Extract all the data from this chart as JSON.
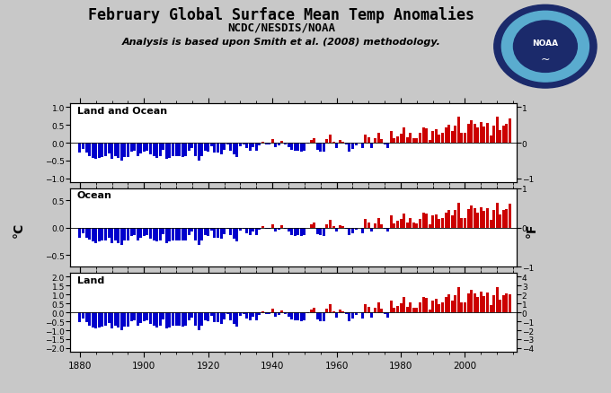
{
  "title1": "February Global Surface Mean Temp Anomalies",
  "title2": "NCDC/NESDIS/NOAA",
  "subtitle": "Analysis is based upon Smith et al. (2008) methodology.",
  "years": [
    1880,
    1881,
    1882,
    1883,
    1884,
    1885,
    1886,
    1887,
    1888,
    1889,
    1890,
    1891,
    1892,
    1893,
    1894,
    1895,
    1896,
    1897,
    1898,
    1899,
    1900,
    1901,
    1902,
    1903,
    1904,
    1905,
    1906,
    1907,
    1908,
    1909,
    1910,
    1911,
    1912,
    1913,
    1914,
    1915,
    1916,
    1917,
    1918,
    1919,
    1920,
    1921,
    1922,
    1923,
    1924,
    1925,
    1926,
    1927,
    1928,
    1929,
    1930,
    1931,
    1932,
    1933,
    1934,
    1935,
    1936,
    1937,
    1938,
    1939,
    1940,
    1941,
    1942,
    1943,
    1944,
    1945,
    1946,
    1947,
    1948,
    1949,
    1950,
    1951,
    1952,
    1953,
    1954,
    1955,
    1956,
    1957,
    1958,
    1959,
    1960,
    1961,
    1962,
    1963,
    1964,
    1965,
    1966,
    1967,
    1968,
    1969,
    1970,
    1971,
    1972,
    1973,
    1974,
    1975,
    1976,
    1977,
    1978,
    1979,
    1980,
    1981,
    1982,
    1983,
    1984,
    1985,
    1986,
    1987,
    1988,
    1989,
    1990,
    1991,
    1992,
    1993,
    1994,
    1995,
    1996,
    1997,
    1998,
    1999,
    2000,
    2001,
    2002,
    2003,
    2004,
    2005,
    2006,
    2007,
    2008,
    2009,
    2010,
    2011,
    2012,
    2013,
    2014
  ],
  "land_ocean": [
    -0.28,
    -0.18,
    -0.28,
    -0.38,
    -0.42,
    -0.44,
    -0.42,
    -0.4,
    -0.38,
    -0.3,
    -0.45,
    -0.38,
    -0.42,
    -0.5,
    -0.4,
    -0.4,
    -0.26,
    -0.22,
    -0.38,
    -0.3,
    -0.26,
    -0.22,
    -0.32,
    -0.38,
    -0.42,
    -0.38,
    -0.2,
    -0.44,
    -0.42,
    -0.38,
    -0.38,
    -0.38,
    -0.4,
    -0.38,
    -0.22,
    -0.14,
    -0.38,
    -0.5,
    -0.38,
    -0.22,
    -0.26,
    -0.1,
    -0.28,
    -0.28,
    -0.32,
    -0.2,
    -0.04,
    -0.22,
    -0.32,
    -0.4,
    -0.1,
    -0.04,
    -0.16,
    -0.22,
    -0.12,
    -0.22,
    -0.08,
    0.04,
    -0.04,
    -0.04,
    0.1,
    -0.12,
    -0.08,
    0.06,
    -0.04,
    -0.12,
    -0.2,
    -0.22,
    -0.22,
    -0.24,
    -0.22,
    -0.02,
    0.08,
    0.14,
    -0.2,
    -0.24,
    -0.26,
    0.1,
    0.22,
    0.04,
    -0.14,
    0.08,
    0.02,
    -0.04,
    -0.24,
    -0.18,
    -0.08,
    0.0,
    -0.16,
    0.24,
    0.16,
    -0.14,
    0.12,
    0.28,
    0.1,
    -0.04,
    -0.14,
    0.34,
    0.12,
    0.18,
    0.26,
    0.42,
    0.16,
    0.28,
    0.14,
    0.12,
    0.28,
    0.44,
    0.4,
    0.08,
    0.34,
    0.38,
    0.24,
    0.28,
    0.44,
    0.5,
    0.34,
    0.48,
    0.72,
    0.28,
    0.28,
    0.52,
    0.62,
    0.54,
    0.44,
    0.58,
    0.46,
    0.56,
    0.2,
    0.48,
    0.72,
    0.36,
    0.48,
    0.54,
    0.68
  ],
  "ocean": [
    -0.18,
    -0.1,
    -0.18,
    -0.22,
    -0.26,
    -0.28,
    -0.26,
    -0.24,
    -0.24,
    -0.18,
    -0.28,
    -0.24,
    -0.28,
    -0.32,
    -0.24,
    -0.24,
    -0.16,
    -0.14,
    -0.24,
    -0.18,
    -0.16,
    -0.14,
    -0.2,
    -0.24,
    -0.26,
    -0.24,
    -0.12,
    -0.28,
    -0.26,
    -0.24,
    -0.24,
    -0.24,
    -0.24,
    -0.24,
    -0.14,
    -0.08,
    -0.24,
    -0.32,
    -0.24,
    -0.14,
    -0.16,
    -0.06,
    -0.18,
    -0.18,
    -0.2,
    -0.12,
    -0.02,
    -0.14,
    -0.2,
    -0.26,
    -0.06,
    -0.02,
    -0.1,
    -0.14,
    -0.08,
    -0.14,
    -0.04,
    0.02,
    -0.02,
    -0.02,
    0.06,
    -0.08,
    -0.04,
    0.04,
    -0.02,
    -0.08,
    -0.14,
    -0.16,
    -0.14,
    -0.16,
    -0.14,
    0.0,
    0.06,
    0.1,
    -0.12,
    -0.14,
    -0.16,
    0.06,
    0.14,
    0.02,
    -0.08,
    0.04,
    0.02,
    -0.02,
    -0.14,
    -0.1,
    -0.04,
    0.0,
    -0.1,
    0.16,
    0.1,
    -0.08,
    0.08,
    0.18,
    0.06,
    -0.02,
    -0.08,
    0.22,
    0.08,
    0.12,
    0.16,
    0.26,
    0.1,
    0.18,
    0.1,
    0.08,
    0.16,
    0.28,
    0.26,
    0.06,
    0.22,
    0.24,
    0.16,
    0.18,
    0.28,
    0.32,
    0.22,
    0.32,
    0.46,
    0.18,
    0.18,
    0.34,
    0.4,
    0.36,
    0.28,
    0.38,
    0.3,
    0.36,
    0.14,
    0.32,
    0.46,
    0.24,
    0.32,
    0.34,
    0.44
  ],
  "land": [
    -0.55,
    -0.36,
    -0.55,
    -0.75,
    -0.85,
    -0.88,
    -0.84,
    -0.8,
    -0.76,
    -0.6,
    -0.9,
    -0.76,
    -0.84,
    -1.0,
    -0.8,
    -0.8,
    -0.52,
    -0.44,
    -0.76,
    -0.6,
    -0.52,
    -0.44,
    -0.64,
    -0.76,
    -0.84,
    -0.76,
    -0.4,
    -0.88,
    -0.84,
    -0.76,
    -0.76,
    -0.76,
    -0.8,
    -0.76,
    -0.44,
    -0.28,
    -0.76,
    -1.0,
    -0.76,
    -0.44,
    -0.52,
    -0.2,
    -0.56,
    -0.56,
    -0.64,
    -0.4,
    -0.08,
    -0.44,
    -0.64,
    -0.8,
    -0.2,
    -0.08,
    -0.32,
    -0.44,
    -0.24,
    -0.44,
    -0.16,
    0.08,
    -0.08,
    -0.08,
    0.2,
    -0.24,
    -0.16,
    0.12,
    -0.08,
    -0.24,
    -0.4,
    -0.44,
    -0.44,
    -0.48,
    -0.44,
    -0.04,
    0.16,
    0.28,
    -0.4,
    -0.48,
    -0.52,
    0.2,
    0.44,
    0.08,
    -0.28,
    0.16,
    0.04,
    -0.08,
    -0.48,
    -0.36,
    -0.16,
    0.0,
    -0.32,
    0.48,
    0.32,
    -0.28,
    0.24,
    0.56,
    0.2,
    -0.08,
    -0.28,
    0.68,
    0.24,
    0.36,
    0.52,
    0.84,
    0.32,
    0.56,
    0.28,
    0.24,
    0.56,
    0.88,
    0.8,
    0.16,
    0.68,
    0.76,
    0.48,
    0.56,
    0.88,
    1.0,
    0.68,
    0.96,
    1.44,
    0.56,
    0.56,
    1.04,
    1.24,
    1.08,
    0.88,
    1.16,
    0.92,
    1.12,
    0.4,
    0.96,
    1.44,
    0.72,
    0.96,
    1.08,
    1.0
  ],
  "bg_color": "#c8c8c8",
  "bar_color_pos": "#cc0000",
  "bar_color_neg": "#0000cc",
  "panel_bg": "#ffffff",
  "title1_fontsize": 12,
  "title2_fontsize": 9,
  "subtitle_fontsize": 8
}
